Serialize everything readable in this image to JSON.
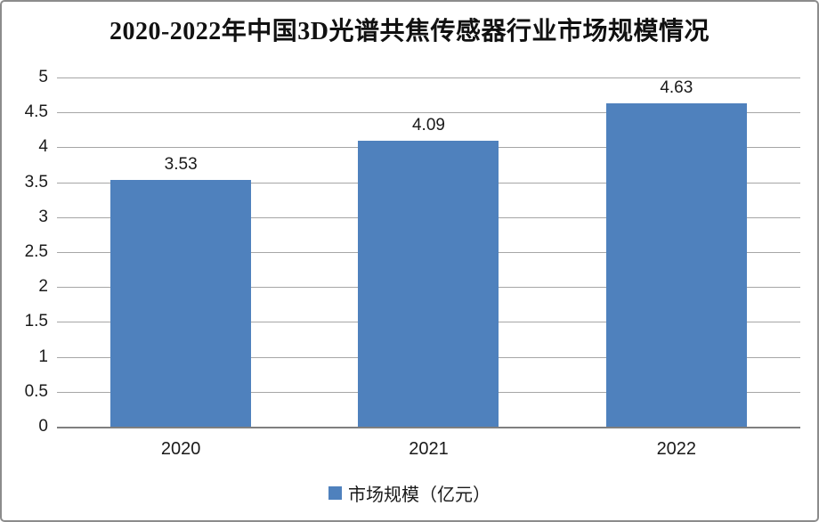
{
  "chart_data": {
    "type": "bar",
    "title": "2020-2022年中国3D光谱共焦传感器行业市场规模情况",
    "categories": [
      "2020",
      "2021",
      "2022"
    ],
    "series": [
      {
        "name": "市场规模（亿元）",
        "values": [
          3.53,
          4.09,
          4.63
        ]
      }
    ],
    "data_labels": [
      "3.53",
      "4.09",
      "4.63"
    ],
    "xlabel": "",
    "ylabel": "",
    "ylim": [
      0,
      5
    ],
    "y_tick_step": 0.5,
    "y_tick_labels": [
      "5",
      "4.5",
      "4",
      "3.5",
      "3",
      "2.5",
      "2",
      "1.5",
      "1",
      "0.5",
      "0"
    ],
    "grid": true,
    "legend_position": "bottom",
    "bar_color": "#4F81BD",
    "gridline_color": "#A6A6A6",
    "axis_line_color": "#7F7F7F"
  },
  "legend": {
    "swatch_icon": "square",
    "label": "市场规模（亿元）"
  }
}
